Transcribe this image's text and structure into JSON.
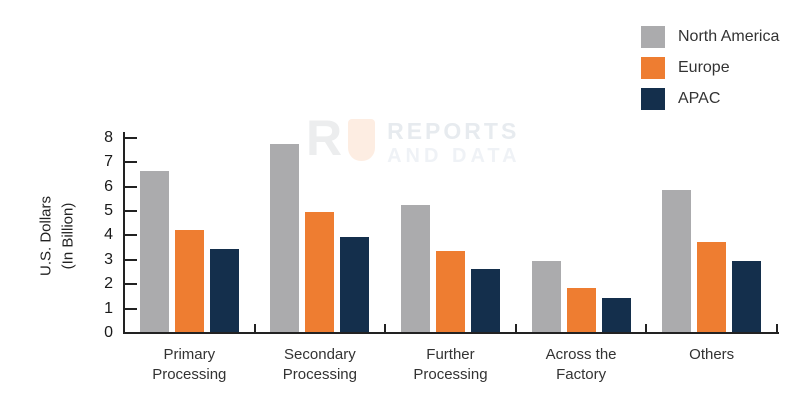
{
  "watermark": {
    "logo_letter": "R",
    "line1": "REPORTS",
    "line2": "AND DATA"
  },
  "y_axis": {
    "title_line1": "U.S. Dollars",
    "title_line2": "(In Billion)",
    "ticks": [
      0,
      1,
      2,
      3,
      4,
      5,
      6,
      7,
      8
    ]
  },
  "chart_data": {
    "type": "bar",
    "title": "",
    "xlabel": "",
    "ylabel": "U.S. Dollars (In Billion)",
    "ylim": [
      0,
      8
    ],
    "grid": false,
    "legend_position": "top-right",
    "categories": [
      "Primary\nProcessing",
      "Secondary\nProcessing",
      "Further\nProcessing",
      "Across the\nFactory",
      "Others"
    ],
    "series": [
      {
        "name": "North America",
        "color": "#ababad",
        "values": [
          6.6,
          7.7,
          5.2,
          2.9,
          5.8
        ]
      },
      {
        "name": "Europe",
        "color": "#ee7d31",
        "values": [
          4.2,
          4.9,
          3.3,
          1.8,
          3.7
        ]
      },
      {
        "name": "APAC",
        "color": "#142f4c",
        "values": [
          3.4,
          3.9,
          2.6,
          1.4,
          2.9
        ]
      }
    ]
  },
  "layout_colors": {
    "axis": "#222222",
    "label_text": "#333333"
  }
}
